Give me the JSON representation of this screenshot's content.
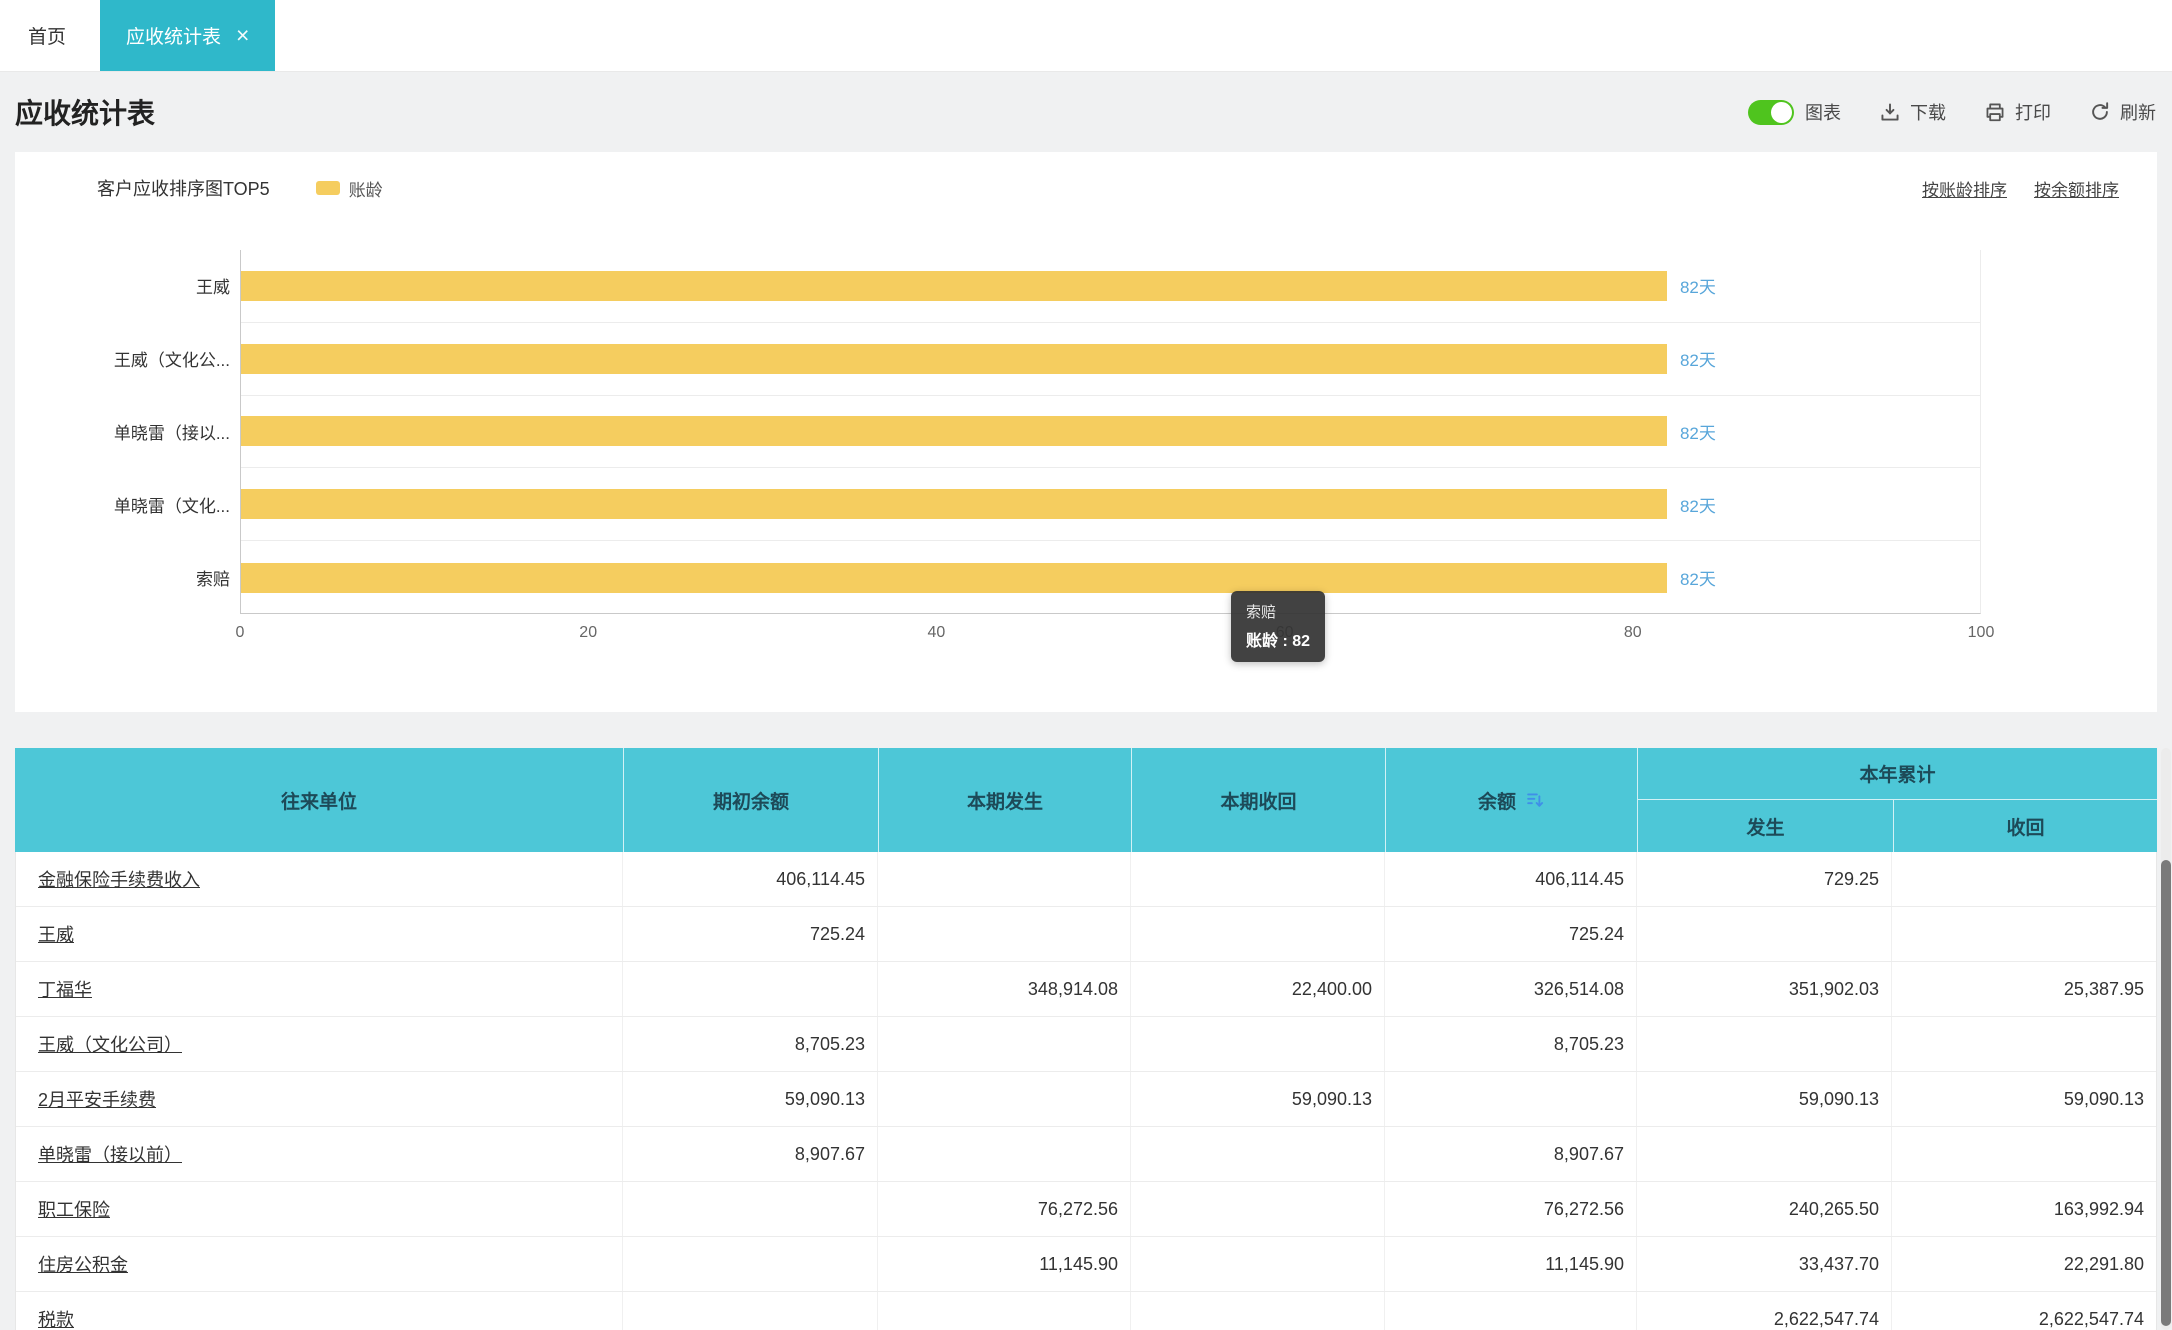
{
  "tabs": {
    "home": "首页",
    "active": "应收统计表",
    "close": "×"
  },
  "page": {
    "title": "应收统计表",
    "toggle_label": "图表",
    "download_label": "下载",
    "print_label": "打印",
    "refresh_label": "刷新"
  },
  "chart": {
    "title": "客户应收排序图TOP5",
    "legend_label": "账龄",
    "sort_by_aging": "按账龄排序",
    "sort_by_balance": "按余额排序",
    "tooltip_title": "索赔",
    "tooltip_value": "账龄 : 82"
  },
  "chart_data": {
    "type": "bar",
    "orientation": "horizontal",
    "title": "客户应收排序图TOP5",
    "legend": [
      "账龄"
    ],
    "legend_position": "top",
    "grid": "horizontal-band-lines",
    "categories": [
      "王威",
      "王威（文化公...",
      "单晓雷（接以...",
      "单晓雷（文化...",
      "索赔"
    ],
    "series": [
      {
        "name": "账龄",
        "values": [
          82,
          82,
          82,
          82,
          82
        ],
        "unit": "天",
        "labels": [
          "82天",
          "82天",
          "82天",
          "82天",
          "82天"
        ],
        "color": "#f5cd5f"
      }
    ],
    "xlim": [
      0,
      100
    ],
    "xticks": [
      "0",
      "20",
      "40",
      "60",
      "80",
      "100"
    ],
    "xlabel": "",
    "ylabel": "",
    "tooltip": {
      "category": "索赔",
      "series": "账龄",
      "value": 82
    }
  },
  "table": {
    "col_company": "往来单位",
    "col_opening": "期初余额",
    "col_current_incurred": "本期发生",
    "col_current_received": "本期收回",
    "col_balance": "余额",
    "col_ytd": "本年累计",
    "col_ytd_incurred": "发生",
    "col_ytd_received": "收回",
    "rows": [
      {
        "name": "金融保险手续费收入",
        "opening": "406,114.45",
        "incurred": "",
        "received": "",
        "balance": "406,114.45",
        "ytd_incurred": "729.25",
        "ytd_received": ""
      },
      {
        "name": "王威",
        "opening": "725.24",
        "incurred": "",
        "received": "",
        "balance": "725.24",
        "ytd_incurred": "",
        "ytd_received": ""
      },
      {
        "name": "丁福华",
        "opening": "",
        "incurred": "348,914.08",
        "received": "22,400.00",
        "balance": "326,514.08",
        "ytd_incurred": "351,902.03",
        "ytd_received": "25,387.95"
      },
      {
        "name": "王威（文化公司）",
        "opening": "8,705.23",
        "incurred": "",
        "received": "",
        "balance": "8,705.23",
        "ytd_incurred": "",
        "ytd_received": ""
      },
      {
        "name": "2月平安手续费",
        "opening": "59,090.13",
        "incurred": "",
        "received": "59,090.13",
        "balance": "",
        "ytd_incurred": "59,090.13",
        "ytd_received": "59,090.13"
      },
      {
        "name": "单晓雷（接以前）",
        "opening": "8,907.67",
        "incurred": "",
        "received": "",
        "balance": "8,907.67",
        "ytd_incurred": "",
        "ytd_received": ""
      },
      {
        "name": "职工保险",
        "opening": "",
        "incurred": "76,272.56",
        "received": "",
        "balance": "76,272.56",
        "ytd_incurred": "240,265.50",
        "ytd_received": "163,992.94"
      },
      {
        "name": "住房公积金",
        "opening": "",
        "incurred": "11,145.90",
        "received": "",
        "balance": "11,145.90",
        "ytd_incurred": "33,437.70",
        "ytd_received": "22,291.80"
      },
      {
        "name": "税款",
        "opening": "",
        "incurred": "",
        "received": "",
        "balance": "",
        "ytd_incurred": "2,622,547.74",
        "ytd_received": "2,622,547.74"
      }
    ]
  },
  "colors": {
    "tab_teal": "#2fb8ca",
    "table_header_bg": "#4dc7d7",
    "table_header_text": "#1d4a58",
    "bar_yellow": "#f5cd5f",
    "value_label_blue": "#58a6da",
    "toggle_green": "#4fc41e",
    "sort_icon_blue": "#3f8fe8"
  }
}
